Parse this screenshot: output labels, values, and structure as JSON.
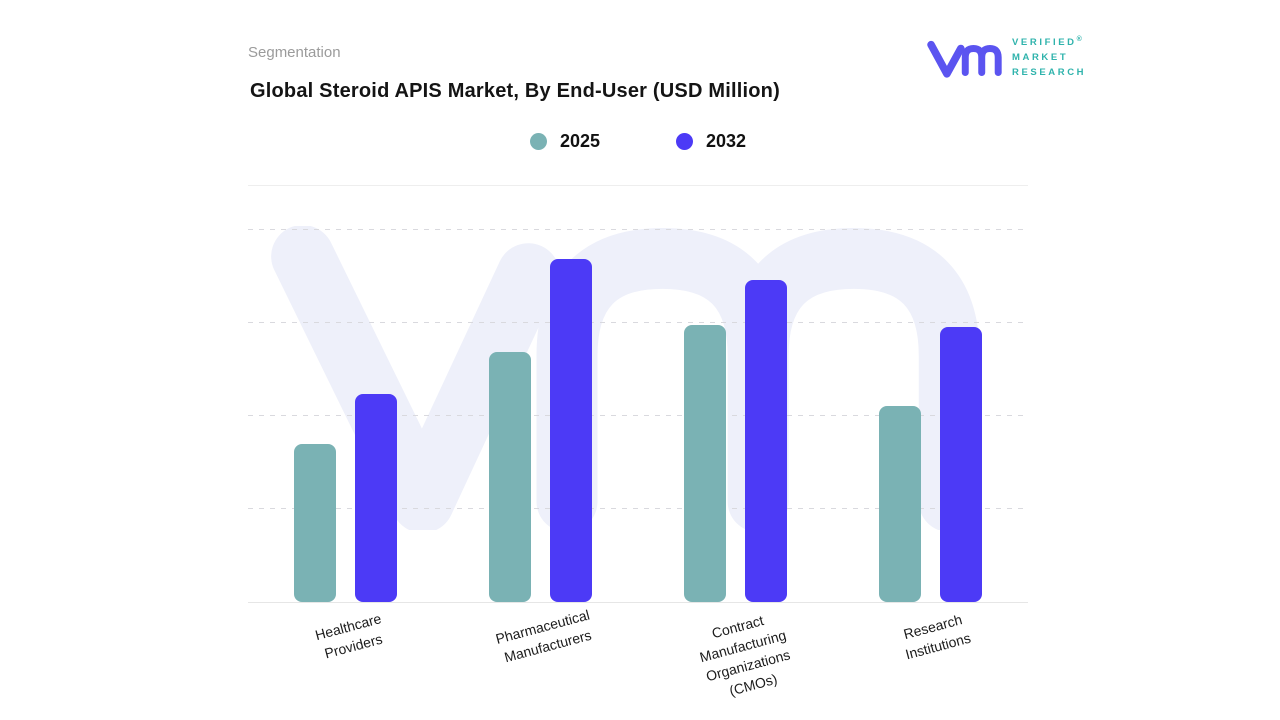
{
  "header": {
    "eyebrow": "Segmentation",
    "title": "Global Steroid APIS Market, By End-User (USD Million)",
    "logo": {
      "brand_lines": [
        "VERIFIED",
        "MARKET",
        "RESEARCH"
      ],
      "registered_mark": "®",
      "mark_color": "#5b54f0",
      "text_color": "#2fb3ac"
    }
  },
  "chart_data": {
    "type": "bar",
    "title": "Global Steroid APIS Market, By End-User (USD Million)",
    "xlabel": "",
    "ylabel": "",
    "units": "USD Million",
    "axis_tick_labels_visible": false,
    "ylim": [
      0,
      100
    ],
    "value_basis": "percent of plot height; numeric axis not labeled in source",
    "grid": "4 dashed horizontal gridlines, solid baseline",
    "legend_position": "top-center",
    "categories": [
      "Healthcare Providers",
      "Pharmaceutical Manufacturers",
      "Contract Manufacturing Organizations (CMOs)",
      "Research Institutions"
    ],
    "category_label_lines": [
      [
        "Healthcare",
        "Providers"
      ],
      [
        "Pharmaceutical",
        "Manufacturers"
      ],
      [
        "Contract",
        "Manufacturing",
        "Organizations",
        "(CMOs)"
      ],
      [
        "Research",
        "Institutions"
      ]
    ],
    "series": [
      {
        "name": "2025",
        "color": "#7ab2b4",
        "values": [
          38,
          60,
          66.5,
          47
        ]
      },
      {
        "name": "2032",
        "color": "#4c3af6",
        "values": [
          50,
          82.5,
          77.5,
          66
        ]
      }
    ],
    "watermark": "vm monogram, light lavender #eef0fa"
  }
}
